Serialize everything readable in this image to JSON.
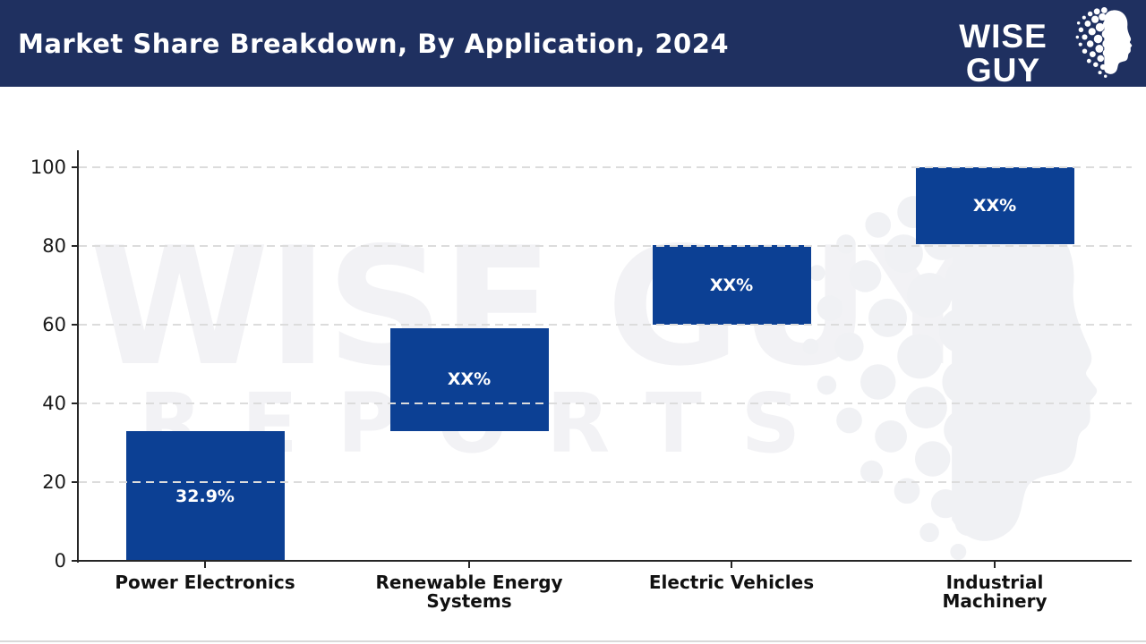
{
  "header": {
    "title": "Market Share Breakdown, By Application, 2024",
    "bg_color": "#1f3060",
    "logo": {
      "main": "WISE GUY",
      "sub": "REPORTS"
    }
  },
  "watermark": {
    "main": "WISE GUY",
    "sub": "REPORTS"
  },
  "chart_data": {
    "type": "bar",
    "subtype": "waterfall",
    "title": "Market Share Breakdown, By Application, 2024",
    "xlabel": "",
    "ylabel": "",
    "ylim": [
      0,
      100
    ],
    "yticks": [
      0,
      20,
      40,
      60,
      80,
      100
    ],
    "grid": "horizontal-dashed",
    "bar_color": "#0c4094",
    "categories": [
      "Power Electronics",
      "Renewable Energy\nSystems",
      "Electric Vehicles",
      "Industrial\nMachinery"
    ],
    "series": [
      {
        "name": "Market Share (%)",
        "segments": [
          {
            "category": "Power Electronics",
            "start": 0,
            "end": 32.9,
            "display": "32.9%"
          },
          {
            "category": "Renewable Energy Systems",
            "start": 32.9,
            "end": 59.2,
            "display": "XX%"
          },
          {
            "category": "Electric Vehicles",
            "start": 59.9,
            "end": 80.3,
            "display": "XX%"
          },
          {
            "category": "Industrial Machinery",
            "start": 80.4,
            "end": 100,
            "display": "XX%"
          }
        ]
      }
    ]
  }
}
